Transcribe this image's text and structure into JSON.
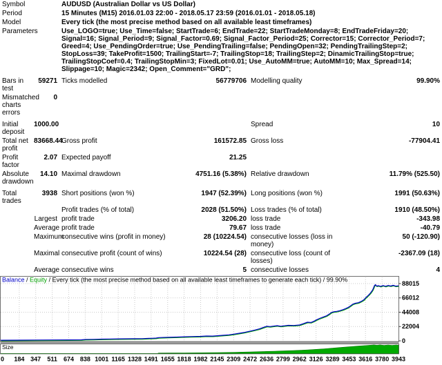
{
  "report": {
    "rows": [
      {
        "type": "head",
        "label": "Symbol",
        "value": "AUDUSD (Australian Dollar vs US Dollar)"
      },
      {
        "type": "head",
        "label": "Period",
        "value": "15 Minutes (M15) 2016.01.03 22:00 - 2018.05.17 23:59 (2016.01.01 - 2018.05.18)"
      },
      {
        "type": "head",
        "label": "Model",
        "value": "Every tick (the most precise method based on all available least timeframes)"
      },
      {
        "type": "head",
        "label": "Parameters",
        "value": "Use_LOGO=true; Use_Time=false; StartTrade=6; EndTrade=22; StartTradeMonday=8; EndTradeFriday=20; Signal=16; Signal_Period=9; Signal_Factor=0.69; Signal_Factor_Period=25; Corrector=15; Corrector_Period=7; Greed=4; Use_PendingOrder=true; Use_PendingTrailing=false; PendingOpen=32; PendingTrailingStep=2; StopLoss=39; TakeProfit=1500; TrailingStart=-7; TrailingStop=18; TrailingStep=2; DinamicTrailingStop=true; TrailingStopCoef=0.4; TrailingStopMin=3; FixedLot=0.01; Use_AutoMM=true; AutoMM=10; Max_Spread=14; Slippage=10; Magic=2342; Open_Comment=\"GRD\";"
      },
      {
        "type": "spacer"
      },
      {
        "type": "stat",
        "cells": [
          "Bars in test",
          "59271",
          "Ticks modelled",
          "56779706",
          "Modelling quality",
          "99.90%"
        ]
      },
      {
        "type": "stat",
        "cells": [
          "Mismatched charts errors",
          "0",
          "",
          "",
          "",
          ""
        ]
      },
      {
        "type": "spacer"
      },
      {
        "type": "stat",
        "cells": [
          "Initial deposit",
          "1000.00",
          "",
          "",
          "Spread",
          "10"
        ]
      },
      {
        "type": "stat",
        "cells": [
          "Total net profit",
          "83668.44",
          "Gross profit",
          "161572.85",
          "Gross loss",
          "-77904.41"
        ]
      },
      {
        "type": "stat",
        "cells": [
          "Profit factor",
          "2.07",
          "Expected payoff",
          "21.25",
          "",
          ""
        ]
      },
      {
        "type": "stat",
        "cells": [
          "Absolute drawdown",
          "14.10",
          "Maximal drawdown",
          "4751.16 (5.38%)",
          "Relative drawdown",
          "11.79% (525.50)"
        ]
      },
      {
        "type": "spacer"
      },
      {
        "type": "stat",
        "cells": [
          "Total trades",
          "3938",
          "Short positions (won %)",
          "1947 (52.39%)",
          "Long positions (won %)",
          "1991 (50.63%)"
        ]
      },
      {
        "type": "stat",
        "cells": [
          "",
          "",
          "Profit trades (% of total)",
          "2028 (51.50%)",
          "Loss trades (% of total)",
          "1910 (48.50%)"
        ]
      },
      {
        "type": "stat",
        "plain2": true,
        "cells": [
          "",
          "Largest",
          "profit trade",
          "3206.20",
          "loss trade",
          "-343.98"
        ]
      },
      {
        "type": "stat",
        "plain2": true,
        "cells": [
          "",
          "Average",
          "profit trade",
          "79.67",
          "loss trade",
          "-40.79"
        ]
      },
      {
        "type": "stat",
        "plain2": true,
        "cells": [
          "",
          "Maximum",
          "consecutive wins (profit in money)",
          "28 (10224.54)",
          "consecutive losses (loss in money)",
          "50 (-120.90)"
        ]
      },
      {
        "type": "stat",
        "plain2": true,
        "cells": [
          "",
          "Maximal",
          "consecutive profit (count of wins)",
          "10224.54 (28)",
          "consecutive loss (count of losses)",
          "-2367.09 (18)"
        ]
      },
      {
        "type": "stat",
        "plain2": true,
        "cells": [
          "",
          "Average",
          "consecutive wins",
          "5",
          "consecutive losses",
          "4"
        ]
      }
    ]
  },
  "chart_data": {
    "type": "line",
    "legend_parts": [
      {
        "text": "Balance",
        "color": "balance"
      },
      {
        "text": " / "
      },
      {
        "text": "Equity",
        "color": "equity"
      },
      {
        "text": " / Every tick (the most precise method based on all available least timeframes to generate each tick) / 99.90%"
      }
    ],
    "size_label": "Size",
    "y_ticks": [
      0,
      22004,
      44008,
      66012,
      88015
    ],
    "y_axis_max_value": 88015,
    "x_ticks": [
      0,
      184,
      347,
      511,
      674,
      838,
      1001,
      1165,
      1328,
      1491,
      1655,
      1818,
      1982,
      2145,
      2309,
      2472,
      2636,
      2799,
      2962,
      3126,
      3289,
      3453,
      3616,
      3780,
      3943
    ],
    "x_max": 3943,
    "grid": true,
    "series": [
      {
        "name": "Balance",
        "points": [
          [
            0,
            1000
          ],
          [
            180,
            1100
          ],
          [
            345,
            1300
          ],
          [
            510,
            1400
          ],
          [
            674,
            1450
          ],
          [
            800,
            1550
          ],
          [
            840,
            2100
          ],
          [
            920,
            2300
          ],
          [
            1001,
            2600
          ],
          [
            1080,
            2900
          ],
          [
            1165,
            3100
          ],
          [
            1240,
            3150
          ],
          [
            1328,
            3300
          ],
          [
            1400,
            3350
          ],
          [
            1470,
            3800
          ],
          [
            1491,
            3950
          ],
          [
            1540,
            4200
          ],
          [
            1565,
            5000
          ],
          [
            1655,
            5400
          ],
          [
            1720,
            5700
          ],
          [
            1818,
            6300
          ],
          [
            1880,
            6600
          ],
          [
            1982,
            6900
          ],
          [
            2040,
            7400
          ],
          [
            2100,
            7300
          ],
          [
            2145,
            7900
          ],
          [
            2210,
            8600
          ],
          [
            2260,
            9200
          ],
          [
            2309,
            10300
          ],
          [
            2360,
            11600
          ],
          [
            2410,
            12800
          ],
          [
            2472,
            14900
          ],
          [
            2520,
            16600
          ],
          [
            2565,
            18400
          ],
          [
            2610,
            21000
          ],
          [
            2636,
            22400
          ],
          [
            2670,
            21900
          ],
          [
            2700,
            22600
          ],
          [
            2740,
            23300
          ],
          [
            2775,
            22500
          ],
          [
            2810,
            23100
          ],
          [
            2850,
            23900
          ],
          [
            2905,
            23600
          ],
          [
            2962,
            24400
          ],
          [
            3000,
            26400
          ],
          [
            3040,
            28600
          ],
          [
            3075,
            28200
          ],
          [
            3110,
            30500
          ],
          [
            3126,
            32000
          ],
          [
            3160,
            34500
          ],
          [
            3195,
            36500
          ],
          [
            3230,
            38500
          ],
          [
            3255,
            41000
          ],
          [
            3280,
            43800
          ],
          [
            3300,
            44600
          ],
          [
            3330,
            45300
          ],
          [
            3360,
            46300
          ],
          [
            3395,
            48000
          ],
          [
            3420,
            49600
          ],
          [
            3445,
            51500
          ],
          [
            3465,
            53600
          ],
          [
            3490,
            56400
          ],
          [
            3515,
            57800
          ],
          [
            3545,
            58600
          ],
          [
            3575,
            60800
          ],
          [
            3600,
            63200
          ],
          [
            3620,
            66600
          ],
          [
            3645,
            70200
          ],
          [
            3665,
            73600
          ],
          [
            3685,
            77800
          ],
          [
            3695,
            81200
          ],
          [
            3705,
            85000
          ],
          [
            3715,
            86400
          ],
          [
            3725,
            84200
          ],
          [
            3745,
            84800
          ],
          [
            3765,
            83700
          ],
          [
            3790,
            85000
          ],
          [
            3815,
            83900
          ],
          [
            3840,
            85200
          ],
          [
            3865,
            84300
          ],
          [
            3890,
            85400
          ],
          [
            3915,
            84100
          ],
          [
            3943,
            84668
          ]
        ]
      },
      {
        "name": "Equity",
        "points_same_as": "Balance"
      }
    ],
    "size_series": {
      "name": "Size",
      "points": [
        [
          0,
          0
        ],
        [
          1555,
          0
        ],
        [
          1565,
          0.05
        ],
        [
          1660,
          0.055
        ],
        [
          1820,
          0.065
        ],
        [
          1985,
          0.08
        ],
        [
          2150,
          0.1
        ],
        [
          2310,
          0.13
        ],
        [
          2400,
          0.16
        ],
        [
          2475,
          0.18
        ],
        [
          2560,
          0.21
        ],
        [
          2640,
          0.24
        ],
        [
          2720,
          0.27
        ],
        [
          2800,
          0.3
        ],
        [
          2880,
          0.33
        ],
        [
          2965,
          0.37
        ],
        [
          3050,
          0.43
        ],
        [
          3130,
          0.48
        ],
        [
          3210,
          0.55
        ],
        [
          3290,
          0.62
        ],
        [
          3370,
          0.7
        ],
        [
          3455,
          0.78
        ],
        [
          3540,
          0.86
        ],
        [
          3620,
          0.93
        ],
        [
          3700,
          1.0
        ],
        [
          3730,
          0.96
        ],
        [
          3760,
          1.0
        ],
        [
          3800,
          0.94
        ],
        [
          3840,
          0.99
        ],
        [
          3880,
          0.95
        ],
        [
          3920,
          0.99
        ],
        [
          3943,
          0.97
        ]
      ]
    }
  },
  "colors": {
    "balance": "#0000C8",
    "equity": "#00A000",
    "size_fill": "#00AA00",
    "size_edge": "#007000",
    "grid": "#C9C9C9",
    "border": "#707070",
    "separator": "#A0A0A0",
    "text": "#000000"
  }
}
